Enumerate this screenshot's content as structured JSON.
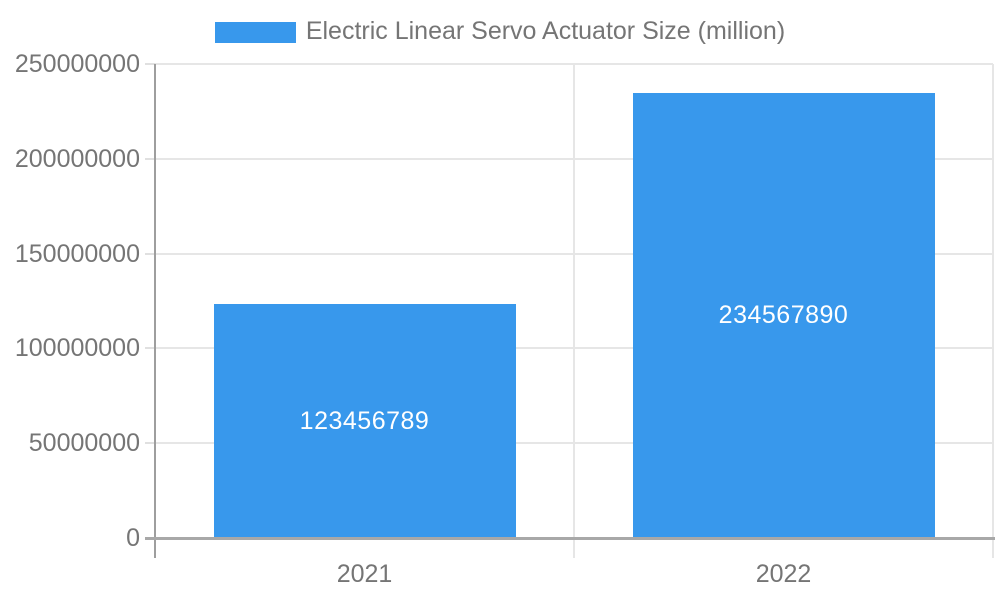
{
  "legend": {
    "label": "Electric Linear Servo Actuator Size (million)"
  },
  "chart_data": {
    "type": "bar",
    "title": "Electric Linear Servo Actuator Size (million)",
    "categories": [
      "2021",
      "2022"
    ],
    "series": [
      {
        "name": "Electric Linear Servo Actuator Size (million)",
        "values": [
          123456789,
          234567890
        ]
      }
    ],
    "data_labels": [
      "123456789",
      "234567890"
    ],
    "xlabel": "",
    "ylabel": "",
    "ylim": [
      0,
      250000000
    ],
    "yticks": [
      0,
      50000000,
      100000000,
      150000000,
      200000000,
      250000000
    ],
    "ytick_labels": [
      "0",
      "50000000",
      "100000000",
      "150000000",
      "200000000",
      "250000000"
    ],
    "grid": "horizontal",
    "legend_position": "top-center"
  },
  "colors": {
    "bar": "#3898EC",
    "bar_label_text": "#FFFFFF",
    "axis_text": "#757575",
    "y_axis_line": "#9E9E9E",
    "x_baseline": "#A8A8A8",
    "gridline": "#E6E6E6",
    "tick": "#E0E0E0",
    "background": "#FFFFFF"
  }
}
